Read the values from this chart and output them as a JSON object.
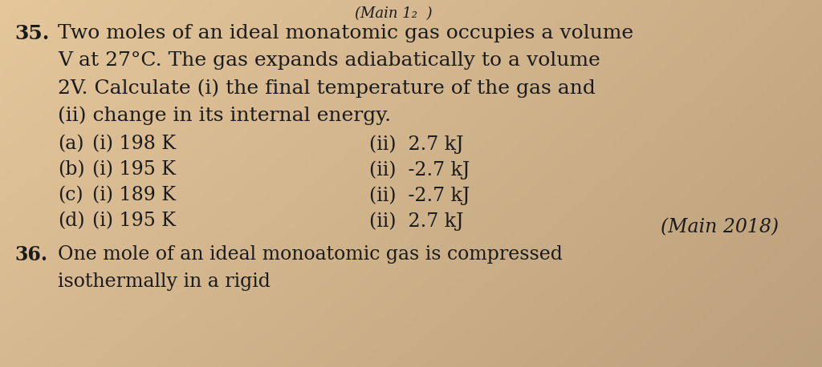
{
  "background_color": "#b8a88a",
  "text_color": "#1a1a1a",
  "question_number": "35.",
  "question_text_line1": "Two moles of an ideal monatomic gas occupies a volume",
  "question_text_line2": "V at 27°C. The gas expands adiabatically to a volume",
  "question_text_line3": "2V. Calculate (i) the final temperature of the gas and",
  "question_text_line4": "(ii) change in its internal energy.",
  "options": [
    {
      "label": "(a)",
      "part_i": "(i) 198 K",
      "part_ii": "(ii)  2.7 kJ"
    },
    {
      "label": "(b)",
      "part_i": "(i) 195 K",
      "part_ii": "(ii)  -2.7 kJ"
    },
    {
      "label": "(c)",
      "part_i": "(i) 189 K",
      "part_ii": "(ii)  -2.7 kJ"
    },
    {
      "label": "(d)",
      "part_i": "(i) 195 K",
      "part_ii": "(ii)  2.7 kJ"
    }
  ],
  "tag": "(Main 2018)",
  "q36_number": "36.",
  "q36_text_line1": "One mole of an ideal monoatomic gas is compressed",
  "q36_text_line2": "isothermally in a rigid",
  "top_partial_text": "(Main 1₂  )",
  "font_size_question": 18,
  "font_size_options": 17,
  "font_size_tag": 17,
  "font_size_top": 13,
  "font_size_q36": 17
}
